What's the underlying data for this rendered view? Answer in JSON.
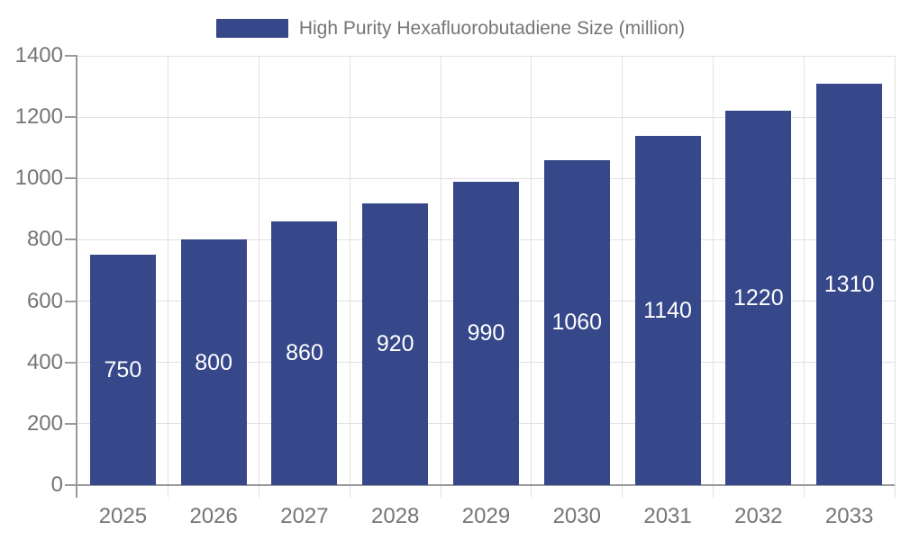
{
  "chart_data": {
    "type": "bar",
    "title": "",
    "legend": "High Purity Hexafluorobutadiene Size (million)",
    "legend_position": "top",
    "categories": [
      "2025",
      "2026",
      "2027",
      "2028",
      "2029",
      "2030",
      "2031",
      "2032",
      "2033"
    ],
    "values": [
      750,
      800,
      860,
      920,
      990,
      1060,
      1140,
      1220,
      1310
    ],
    "xlabel": "",
    "ylabel": "",
    "ylim": [
      0,
      1400
    ],
    "yticks": [
      0,
      200,
      400,
      600,
      800,
      1000,
      1200,
      1400
    ],
    "grid": true,
    "bar_color": "#36478A",
    "bar_label_color": "#FFFFFF",
    "axis_color": "#9A9A9A",
    "grid_color": "#E1E1E1",
    "tick_text_color": "#757575"
  }
}
